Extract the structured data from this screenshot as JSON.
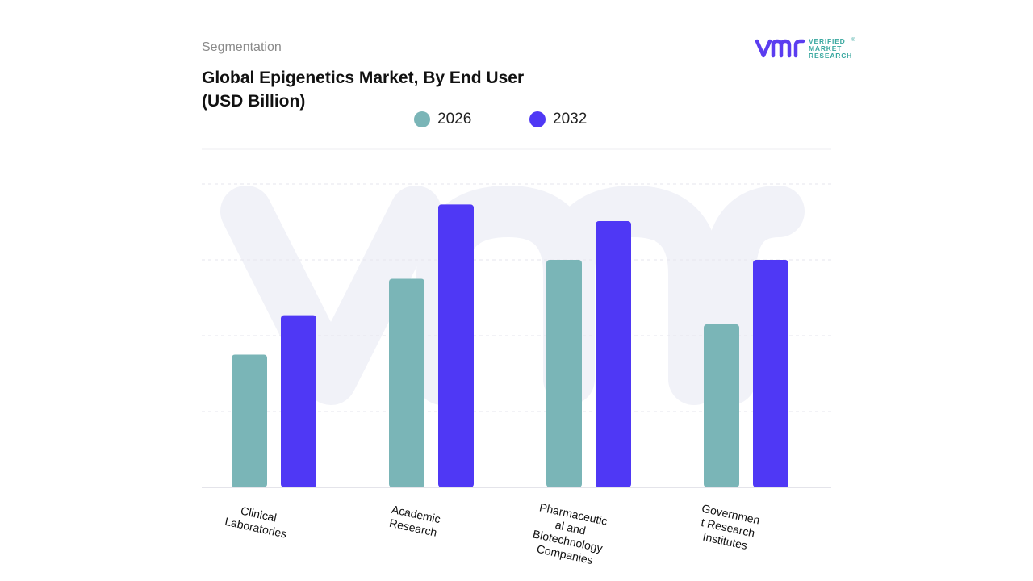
{
  "header": {
    "segment_label": "Segmentation",
    "title": "Global Epigenetics Market, By End User (USD Billion)"
  },
  "logo": {
    "mark": "vmr",
    "line1": "VERIFIED",
    "line2": "MARKET",
    "line3": "RESEARCH",
    "registered": "®"
  },
  "colors": {
    "series_2026": "#7ab5b7",
    "series_2032": "#4f38f5",
    "gridline": "#e6e6ee",
    "watermark": "#f1f2f8",
    "logo_mark": "#5b3df0",
    "logo_text": "#3aa8a0"
  },
  "chart_data": {
    "type": "bar",
    "title": "Global Epigenetics Market, By End User (USD Billion)",
    "categories": [
      "Clinical Laboratories",
      "Academic Research",
      "Pharmaceutical and Biotechnology Companies",
      "Government Research Institutes"
    ],
    "category_label_lines": [
      [
        "Clinical",
        "Laboratories"
      ],
      [
        "Academic",
        "Research"
      ],
      [
        "Pharmaceutic",
        "al and",
        "Biotechnology",
        "Companies"
      ],
      [
        "Governmen",
        "t Research",
        "Institutes"
      ]
    ],
    "series": [
      {
        "name": "2026",
        "values": [
          1.75,
          2.75,
          3.0,
          2.15
        ]
      },
      {
        "name": "2032",
        "values": [
          2.27,
          3.73,
          3.51,
          3.0
        ]
      }
    ],
    "ylim": [
      0,
      4.0
    ],
    "grid": true,
    "legend_position": "top",
    "y_axis_labels_shown": false,
    "watermark": "vmr"
  }
}
